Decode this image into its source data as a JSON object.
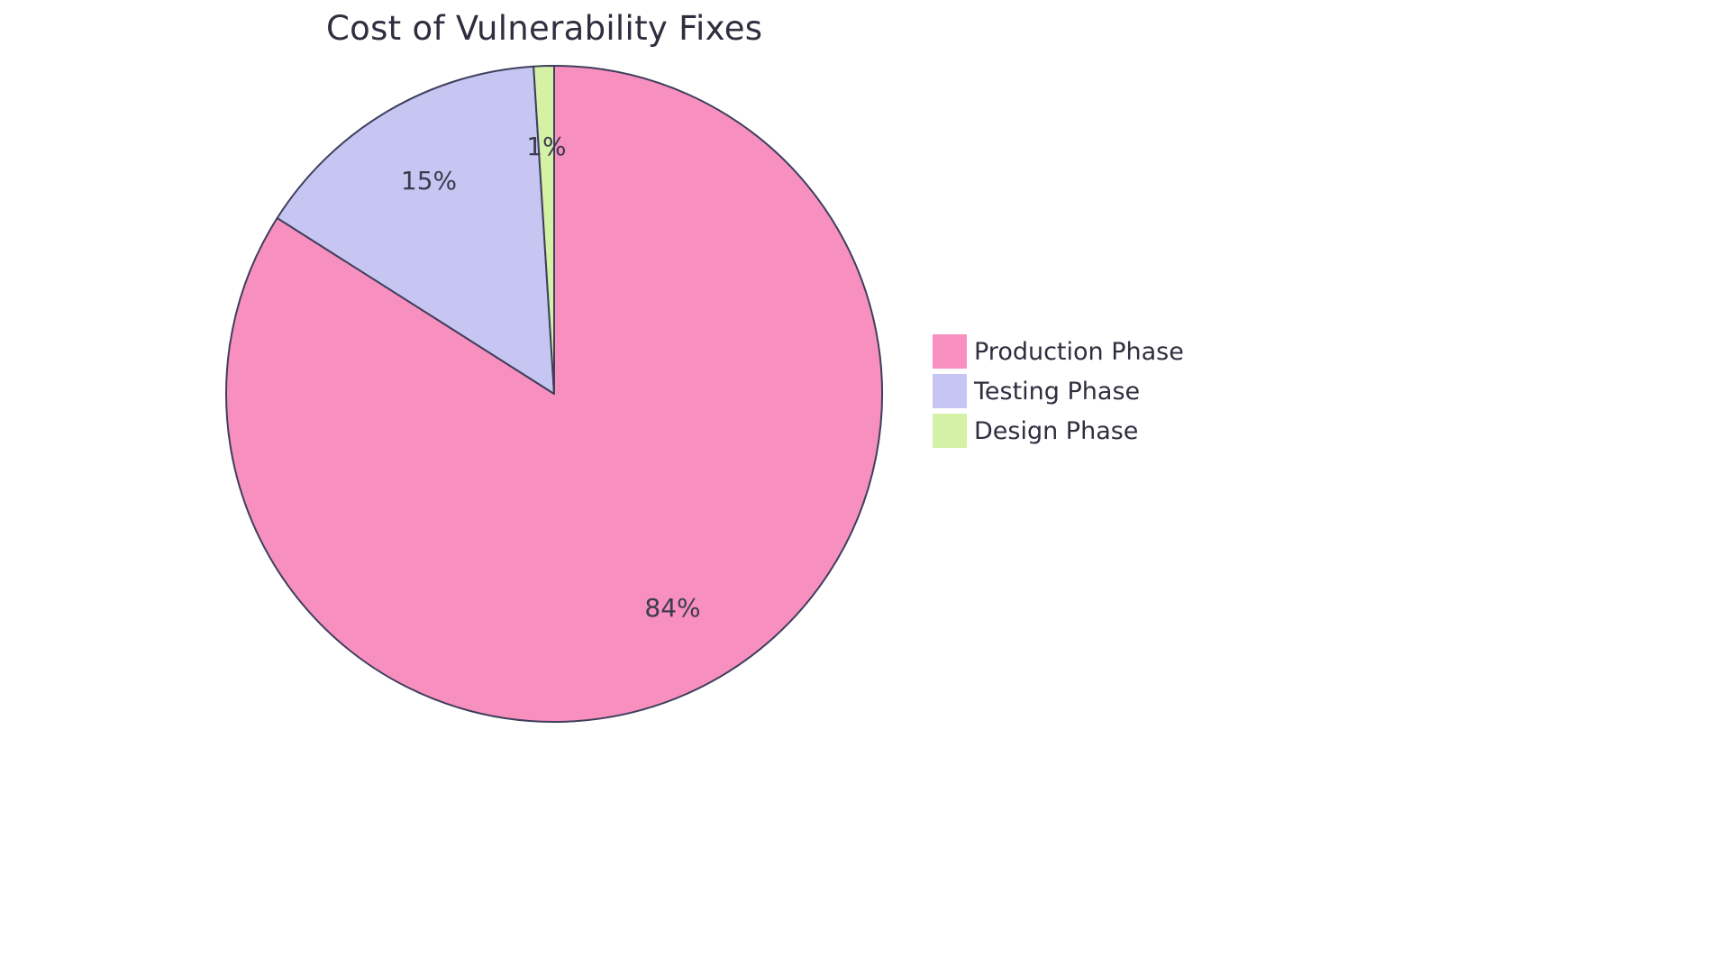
{
  "chart_data": {
    "type": "pie",
    "title": "Cost of Vulnerability Fixes",
    "legend_position": "right",
    "direction": "clockwise",
    "start_angle_deg": 0,
    "stroke_color": "#3F3F5C",
    "background_color": "#FFFFFF",
    "slices": [
      {
        "label": "Production Phase",
        "value": 84,
        "pct_label": "84%",
        "color": "#F78FBF"
      },
      {
        "label": "Testing Phase",
        "value": 15,
        "pct_label": "15%",
        "color": "#C7C5F2"
      },
      {
        "label": "Design Phase",
        "value": 1,
        "pct_label": "1%",
        "color": "#D4F1A5"
      }
    ]
  }
}
